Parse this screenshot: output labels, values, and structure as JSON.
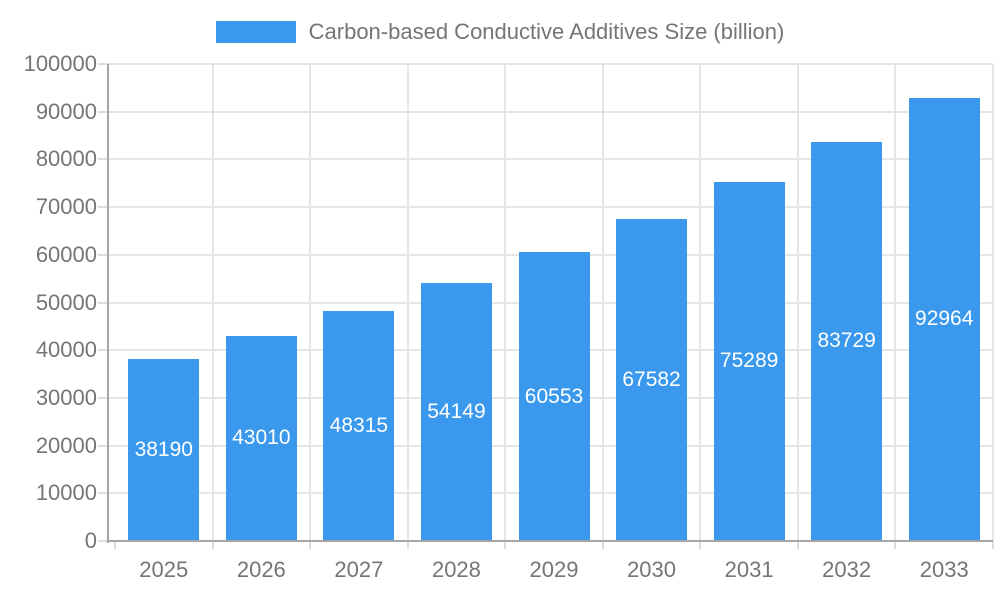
{
  "legend": {
    "label": "Carbon-based Conductive Additives Size (billion)",
    "swatch_color": "#3B99ED"
  },
  "chart_data": {
    "type": "bar",
    "title": "Carbon-based Conductive Additives Size (billion)",
    "categories": [
      "2025",
      "2026",
      "2027",
      "2028",
      "2029",
      "2030",
      "2031",
      "2032",
      "2033"
    ],
    "values": [
      38190,
      43010,
      48315,
      54149,
      60553,
      67582,
      75289,
      83729,
      92964
    ],
    "xlabel": "",
    "ylabel": "",
    "ylim": [
      0,
      100000
    ],
    "ytick_step": 10000,
    "y_tick_labels": [
      "0",
      "10000",
      "20000",
      "30000",
      "40000",
      "50000",
      "60000",
      "70000",
      "80000",
      "90000",
      "100000"
    ],
    "grid": true,
    "legend_position": "top",
    "bar_color": "#3B99ED",
    "value_label_color": "#FFFFFF"
  },
  "colors": {
    "background": "#FFFFFF",
    "bar": "#3B99ED",
    "axis_line": "#A6A6A6",
    "gridline": "#E5E5E5",
    "tick": "#DCDCDC",
    "axis_label_text": "#757575",
    "legend_text": "#757575"
  }
}
